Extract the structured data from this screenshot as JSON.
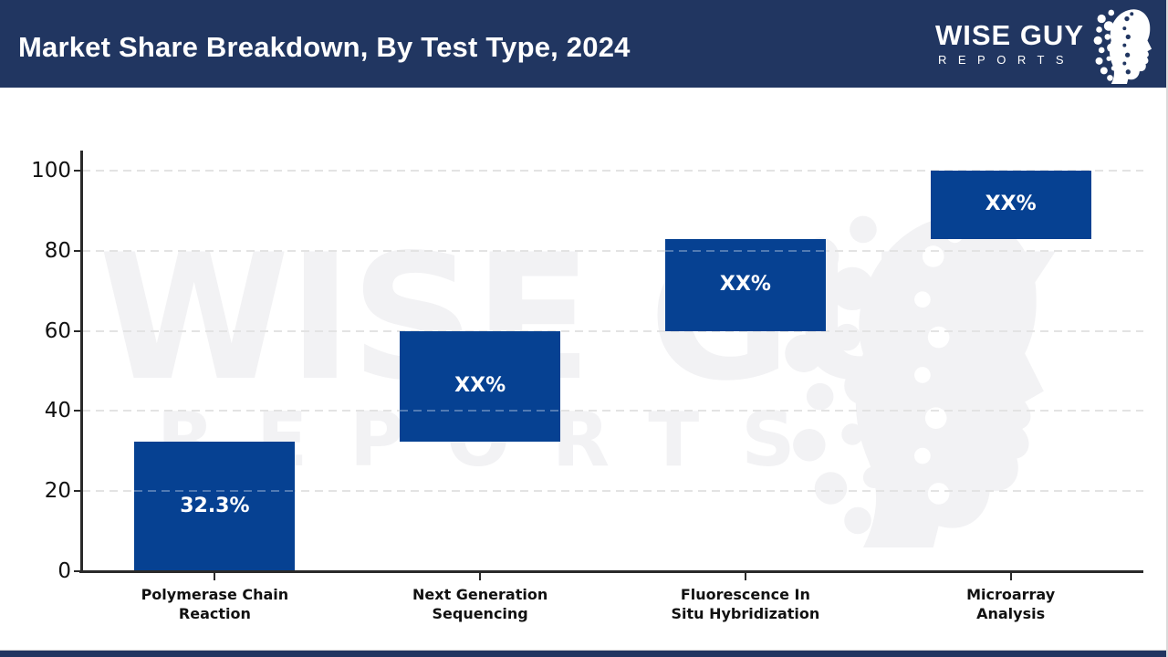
{
  "header": {
    "title": "Market Share Breakdown, By Test Type, 2024",
    "logo": {
      "line1": "WISE GUY",
      "line2": "REPORTS"
    }
  },
  "watermark": {
    "line1": "WISE GUY",
    "line2": "REPORTS"
  },
  "colors": {
    "header_bg": "#213661",
    "footer_bg": "#213661",
    "bar_blue": "#064192",
    "watermark_gray": "#f2f2f4",
    "gridline_gray": "#e3e3e3",
    "axis_dark": "#2a2a2a"
  },
  "chart_data": {
    "type": "bar",
    "subtype": "waterfall",
    "title": "Market Share Breakdown, By Test Type, 2024",
    "categories": [
      [
        "Polymerase Chain",
        "Reaction"
      ],
      [
        "Next Generation",
        "Sequencing"
      ],
      [
        "Fluorescence In",
        "Situ Hybridization"
      ],
      [
        "Microarray",
        "Analysis"
      ]
    ],
    "bars": [
      {
        "label": "32.3%",
        "start": 0,
        "end": 32.3
      },
      {
        "label": "XX%",
        "start": 32.3,
        "end": 60
      },
      {
        "label": "XX%",
        "start": 60,
        "end": 83
      },
      {
        "label": "XX%",
        "start": 83,
        "end": 100
      }
    ],
    "y_ticks": [
      0,
      20,
      40,
      60,
      80,
      100
    ],
    "ylim": [
      0,
      105
    ],
    "xlabel": "",
    "ylabel": "",
    "grid": "dashed-horizontal",
    "legend": "none",
    "bar_color": "#064192"
  }
}
